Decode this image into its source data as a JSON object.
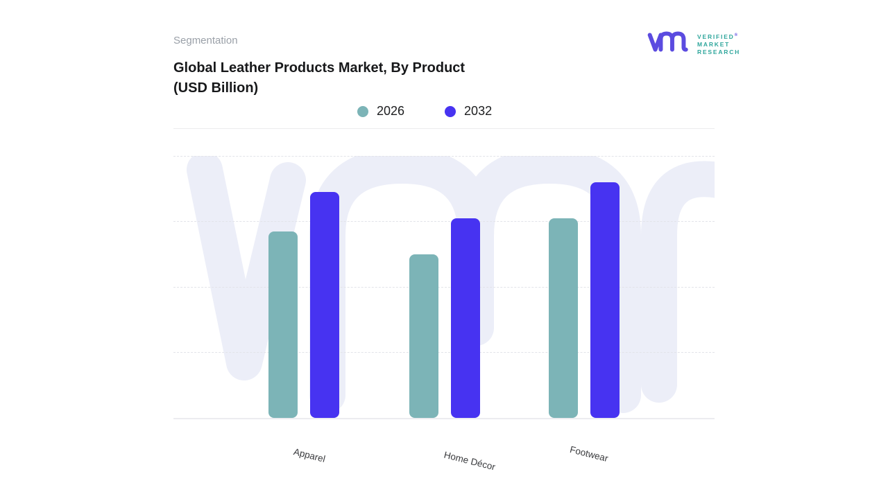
{
  "header": {
    "eyebrow": "Segmentation",
    "title": "Global Leather Products Market, By Product\n(USD Billion)"
  },
  "logo": {
    "lines": [
      "VERIFIED",
      "MARKET",
      "RESEARCH"
    ],
    "registered_mark": "®",
    "glyph_color": "#5b4be0",
    "text_color": "#2fa69c"
  },
  "legend": {
    "items": [
      {
        "label": "2026",
        "color": "#7cb4b7"
      },
      {
        "label": "2032",
        "color": "#4733f1"
      }
    ]
  },
  "chart_data": {
    "type": "bar",
    "title": "Global Leather Products Market, By Product (USD Billion)",
    "categories": [
      "Apparel",
      "Home Décor",
      "Footwear"
    ],
    "series": [
      {
        "name": "2026",
        "color": "#7cb4b7",
        "values": [
          2.85,
          2.5,
          3.05
        ]
      },
      {
        "name": "2032",
        "color": "#4733f1",
        "values": [
          3.45,
          3.05,
          3.6
        ]
      }
    ],
    "xlabel": "",
    "ylabel": "",
    "ylim": [
      0,
      4
    ],
    "y_axis_tick_labels_visible": false,
    "value_scale_note": "relative units; 1 unit = 1 horizontal gridline interval (chart shows no numeric axis labels)",
    "gridlines": "horizontal dashed",
    "legend_position": "top-center"
  },
  "watermark": {
    "color": "#eceef8"
  }
}
